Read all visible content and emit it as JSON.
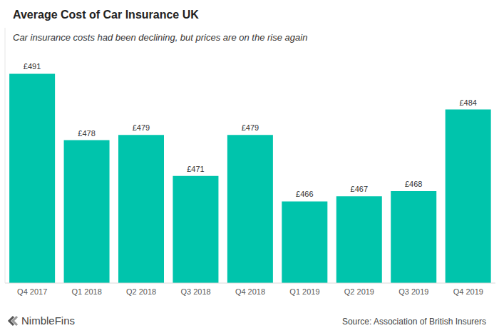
{
  "chart_data": {
    "type": "bar",
    "title": "Average Cost of Car Insurance UK",
    "subtitle": "Car insurance costs had been declining, but prices are on the rise again",
    "categories": [
      "Q4 2017",
      "Q1 2018",
      "Q2 2018",
      "Q3 2018",
      "Q4 2018",
      "Q1 2019",
      "Q2 2019",
      "Q3 2019",
      "Q4 2019"
    ],
    "values": [
      491,
      478,
      479,
      471,
      479,
      466,
      467,
      468,
      484
    ],
    "value_labels": [
      "£491",
      "£478",
      "£479",
      "£471",
      "£479",
      "£466",
      "£467",
      "£468",
      "£484"
    ],
    "color": "#00c4ac",
    "ylim": [
      450,
      500
    ],
    "yticks": [
      450,
      500
    ],
    "tick_labels": "x",
    "data_labels": true,
    "grid": false,
    "logo": "NimbleFins",
    "source": "Source: Association of British Insurers"
  }
}
